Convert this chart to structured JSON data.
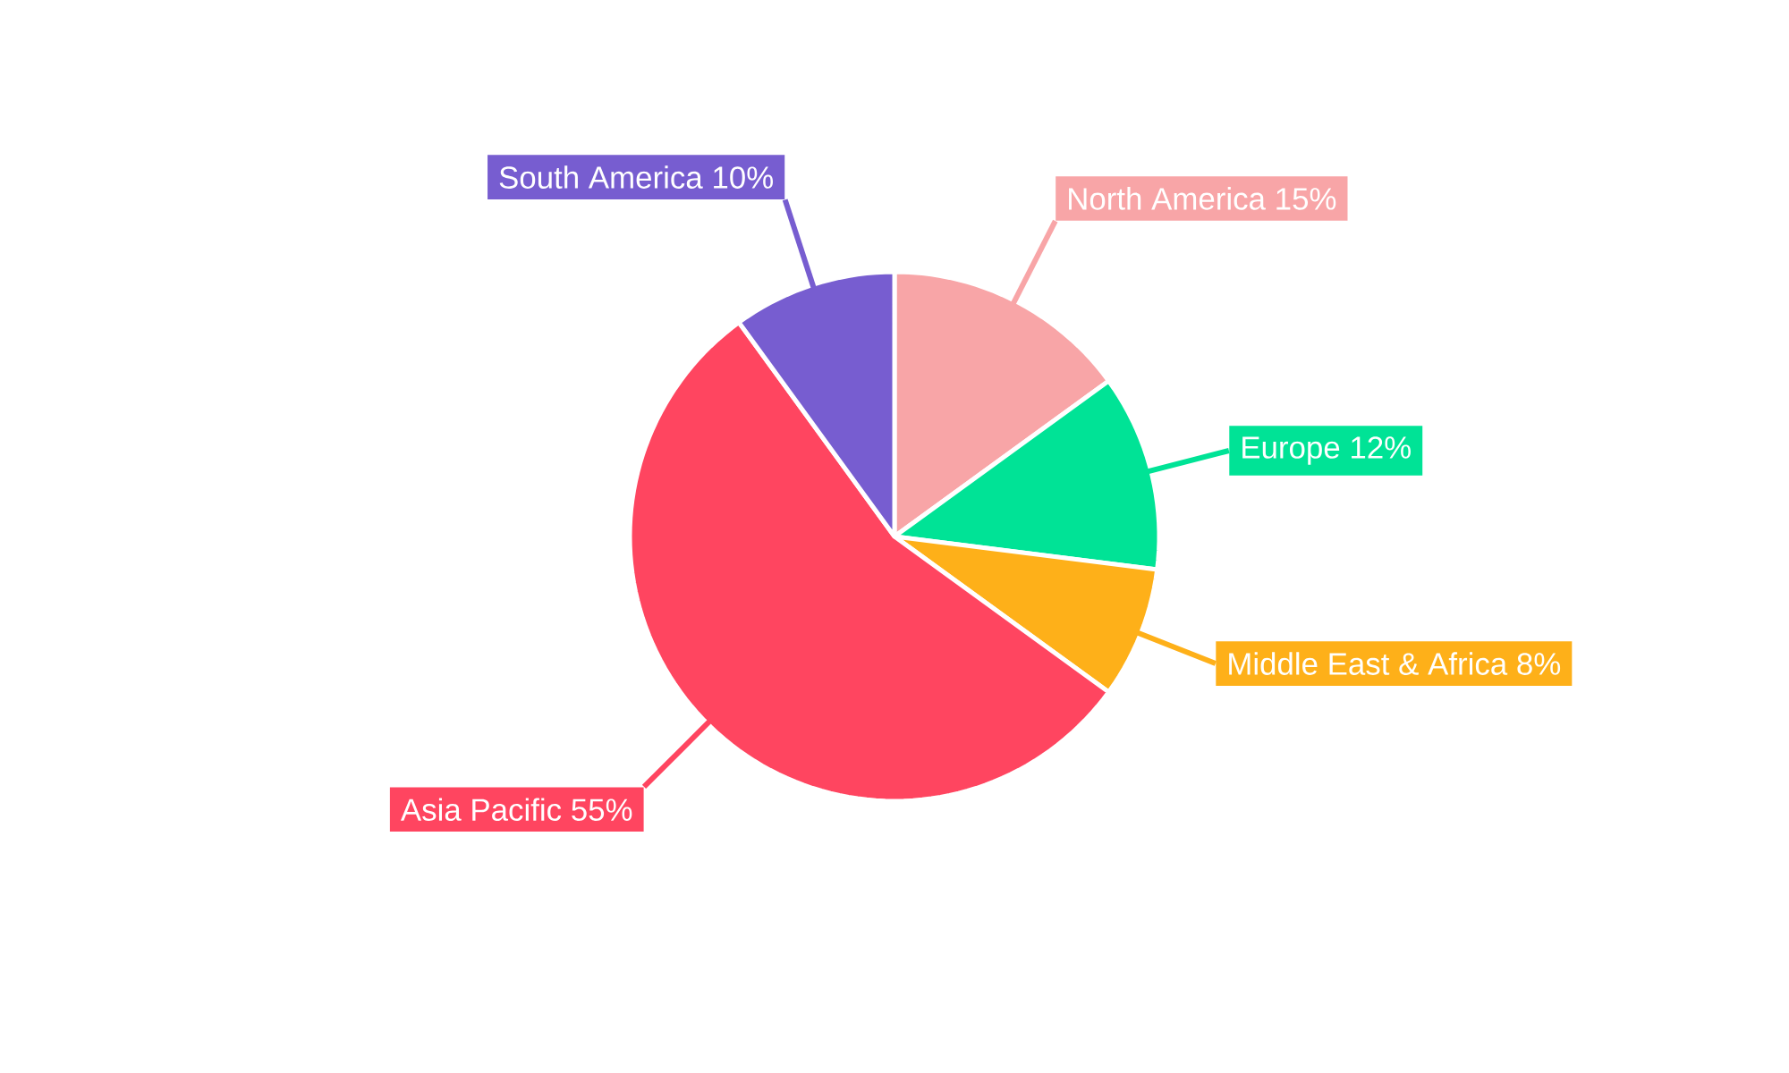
{
  "chart_data": {
    "type": "pie",
    "categories": [
      "North America",
      "Europe",
      "Middle East & Africa",
      "Asia Pacific",
      "South America"
    ],
    "values": [
      15,
      12,
      8,
      55,
      10
    ],
    "value_labels": [
      "15%",
      "12%",
      "8%",
      "55%",
      "10%"
    ],
    "colors": [
      "#f8a5a7",
      "#00e396",
      "#feb019",
      "#ff4560",
      "#775dd0"
    ]
  }
}
